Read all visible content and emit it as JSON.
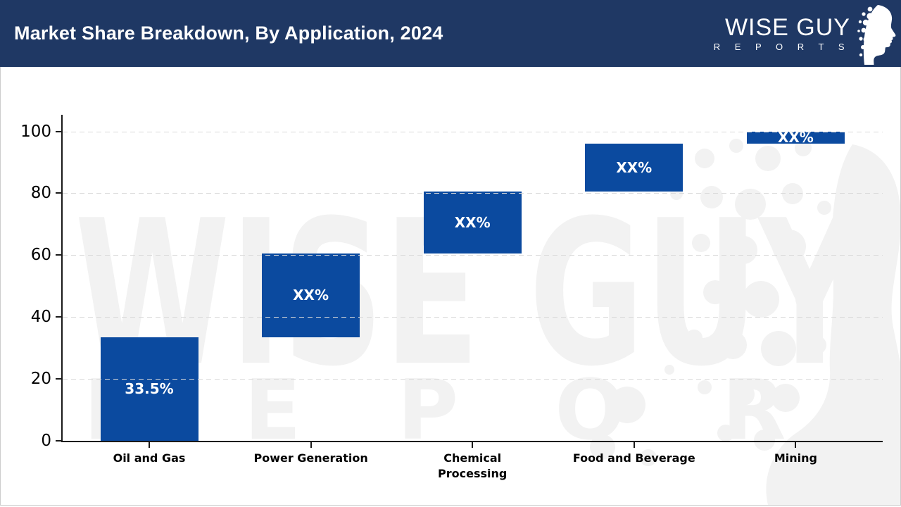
{
  "header": {
    "title": "Market Share Breakdown, By Application, 2024",
    "bg_color": "#1f3864",
    "logo": {
      "line1": "WISE GUY",
      "line2": "R E P O R T S"
    }
  },
  "watermark": {
    "line1": "WISE GUY",
    "line2": "R E P O R T S"
  },
  "chart_data": {
    "type": "bar",
    "subtype": "waterfall",
    "title": "Market Share Breakdown, By Application, 2024",
    "categories": [
      "Oil and Gas",
      "Power Generation",
      "Chemical Processing",
      "Food and Beverage",
      "Mining"
    ],
    "categories_display": [
      "Oil and Gas",
      "Power Generation",
      "Chemical\nProcessing",
      "Food and Beverage",
      "Mining"
    ],
    "segments": [
      {
        "category": "Oil and Gas",
        "start": 0,
        "end": 33.5,
        "label": "33.5%"
      },
      {
        "category": "Power Generation",
        "start": 33.5,
        "end": 60.5,
        "label": "XX%"
      },
      {
        "category": "Chemical Processing",
        "start": 60.5,
        "end": 80.5,
        "label": "XX%"
      },
      {
        "category": "Food and Beverage",
        "start": 80.5,
        "end": 96,
        "label": "XX%"
      },
      {
        "category": "Mining",
        "start": 96,
        "end": 100,
        "label": "XX%"
      }
    ],
    "yticks": [
      0,
      20,
      40,
      60,
      80,
      100
    ],
    "ylim": [
      0,
      105.5
    ],
    "grid": "dashed horizontal, light gray, drawn over bars",
    "legend": "none",
    "bar_color": "#0b4a9f",
    "bar_label_color": "#ffffff",
    "axis_color": "#1a1a1a"
  }
}
